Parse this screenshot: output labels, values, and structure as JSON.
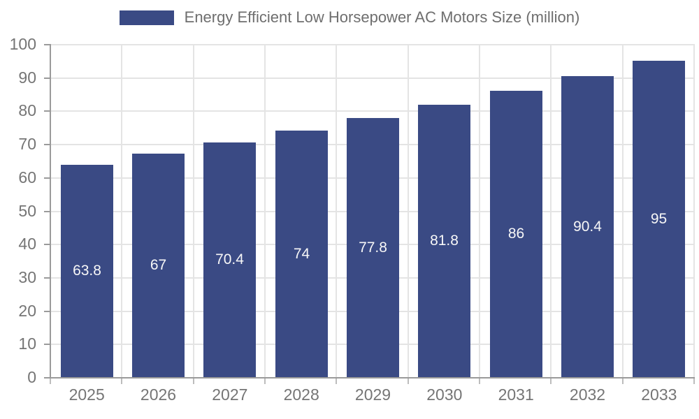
{
  "chart_data": {
    "type": "bar",
    "title": "Energy Efficient Low Horsepower AC Motors Size (million)",
    "categories": [
      "2025",
      "2026",
      "2027",
      "2028",
      "2029",
      "2030",
      "2031",
      "2032",
      "2033"
    ],
    "values": [
      63.8,
      67,
      70.4,
      74,
      77.8,
      81.8,
      86,
      90.4,
      95
    ],
    "xlabel": "",
    "ylabel": "",
    "ylim": [
      0,
      100
    ],
    "ytick_step": 10,
    "ytick_labels": [
      "0",
      "10",
      "20",
      "30",
      "40",
      "50",
      "60",
      "70",
      "80",
      "90",
      "100"
    ],
    "grid": true,
    "legend_position": "top",
    "colors": {
      "bar": "#3A4A84",
      "bar_value_label": "#f7f7f7",
      "gridline": "#e4e4e4",
      "axis_line": "#9a9a9a",
      "tick_text": "#757575",
      "legend_text": "#6e6e6e"
    }
  }
}
